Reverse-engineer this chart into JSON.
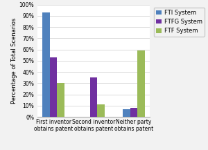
{
  "categories": [
    "First inventor\nobtains patent",
    "Second inventor\nobtains patent",
    "Neither party\nobtains patent"
  ],
  "series": {
    "FTI System": [
      93,
      0,
      7
    ],
    "FTFG System": [
      53,
      35,
      8
    ],
    "FTF System": [
      30,
      11,
      59
    ]
  },
  "colors": {
    "FTI System": "#4F81BD",
    "FTFG System": "#7030A0",
    "FTF System": "#9BBB59"
  },
  "ylabel": "Percentage of Total Scenarios",
  "ylim": [
    0,
    100
  ],
  "yticks": [
    0,
    10,
    20,
    30,
    40,
    50,
    60,
    70,
    80,
    90,
    100
  ],
  "ytick_labels": [
    "0%",
    "10%",
    "20%",
    "30%",
    "40%",
    "50%",
    "60%",
    "70%",
    "80%",
    "90%",
    "100%"
  ],
  "legend_order": [
    "FTI System",
    "FTFG System",
    "FTF System"
  ],
  "background_color": "#F2F2F2",
  "plot_bg_color": "#FFFFFF",
  "axis_label_fontsize": 6.0,
  "tick_fontsize": 5.5,
  "legend_fontsize": 6.0,
  "bar_width": 0.18,
  "grid": true
}
